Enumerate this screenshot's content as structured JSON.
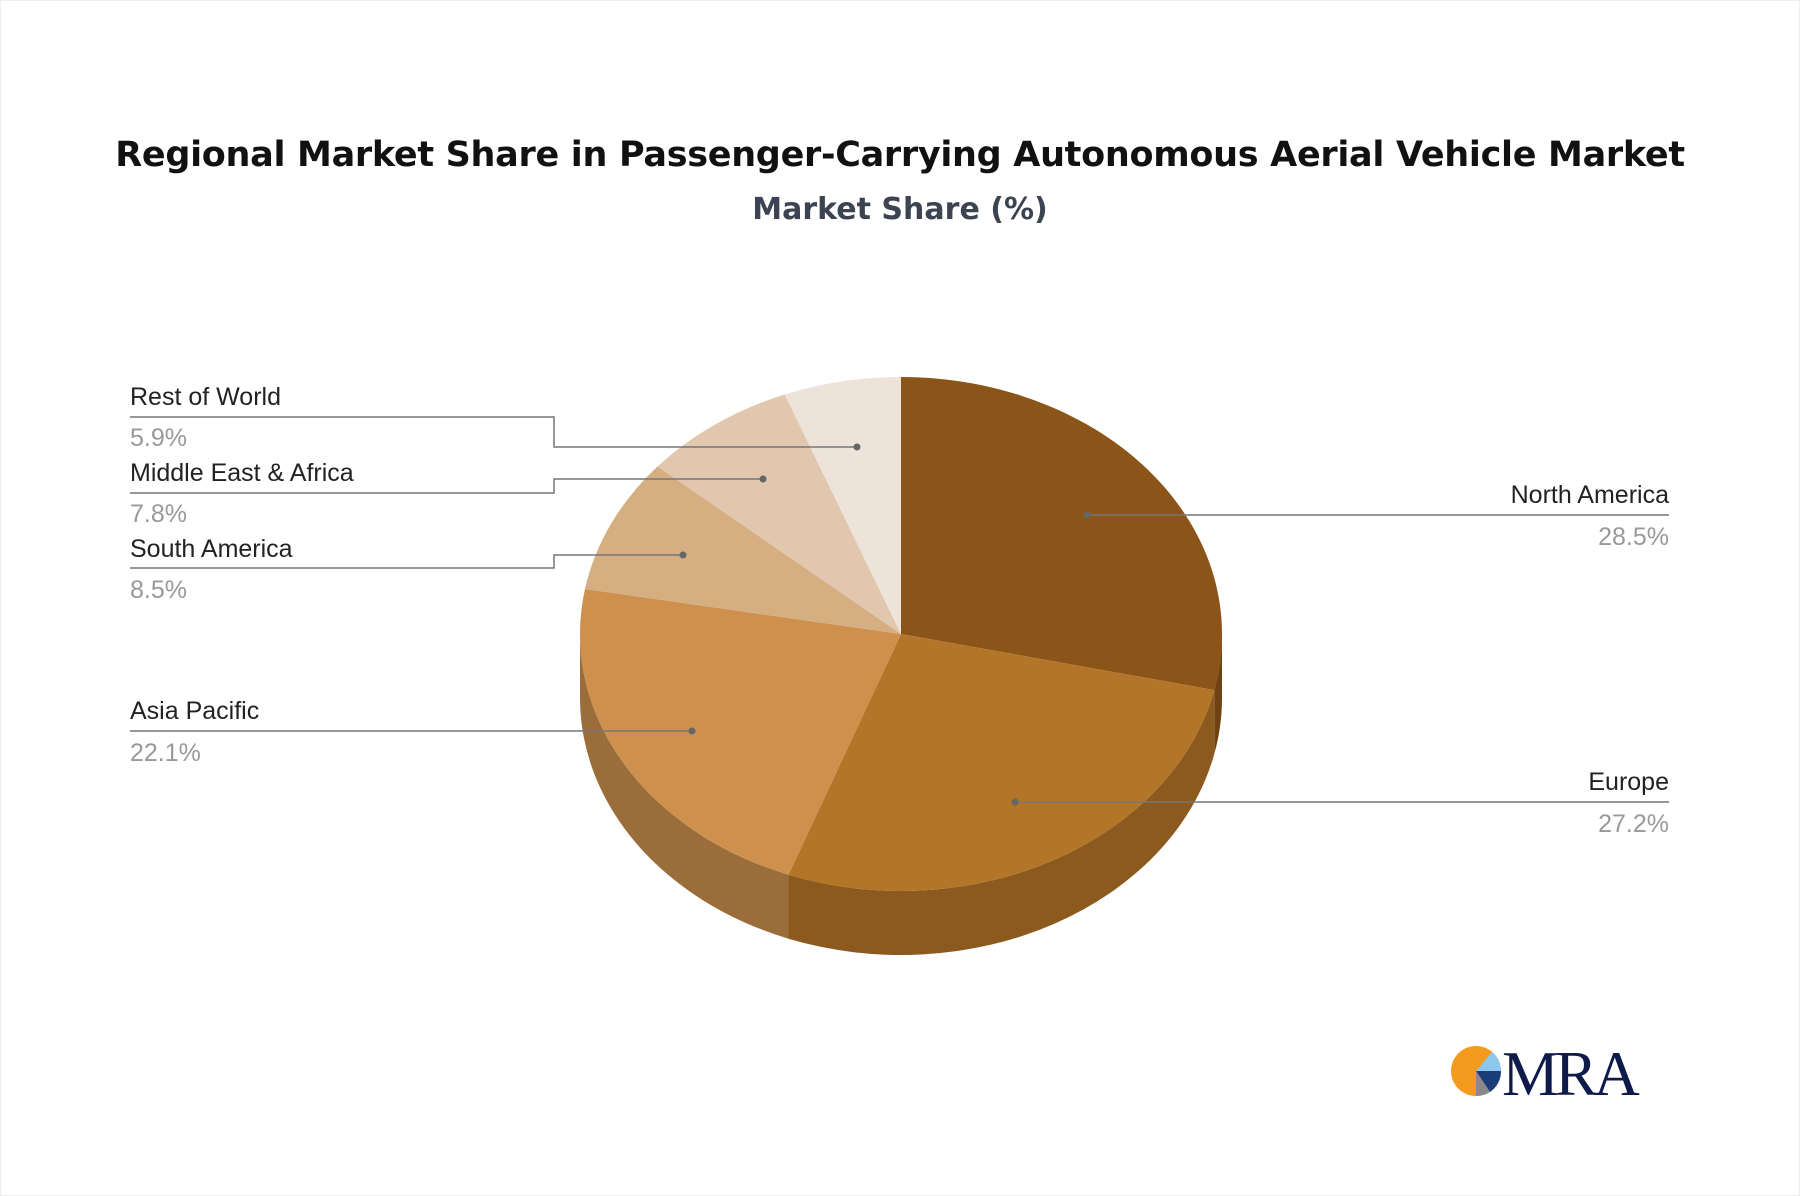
{
  "chart_data": {
    "type": "pie",
    "style": "3d",
    "title": "Regional Market Share in Passenger-Carrying Autonomous Aerial Vehicle Market",
    "subtitle": "Market Share (%)",
    "slices": [
      {
        "label": "North America",
        "value": 28.5,
        "display": "28.5%",
        "color": "#8B5519",
        "side_color": "#6E4212"
      },
      {
        "label": "Europe",
        "value": 27.2,
        "display": "27.2%",
        "color": "#B37528",
        "side_color": "#8C5A1E"
      },
      {
        "label": "Asia Pacific",
        "value": 22.1,
        "display": "22.1%",
        "color": "#CD914D",
        "side_color": "#9A6D3A"
      },
      {
        "label": "South America",
        "value": 8.5,
        "display": "8.5%",
        "color": "#D5AE82",
        "side_color": "#A88863"
      },
      {
        "label": "Middle East & Africa",
        "value": 7.8,
        "display": "7.8%",
        "color": "#E0C7AD",
        "side_color": "#B39E88"
      },
      {
        "label": "Rest of World",
        "value": 5.9,
        "display": "5.9%",
        "color": "#EDE3D9",
        "side_color": "#C2B8AE"
      }
    ],
    "legend": "leader-line labels"
  },
  "logo": {
    "text": "MRA",
    "colors": {
      "orange": "#F39A1F",
      "light_blue": "#8CC8EE",
      "navy": "#1A3D7A",
      "gray": "#8A8A8A",
      "text": "#0E1A4A"
    }
  }
}
